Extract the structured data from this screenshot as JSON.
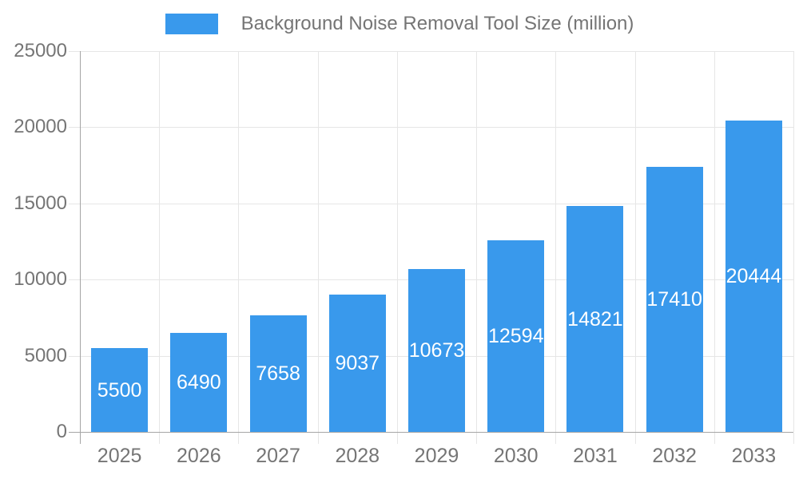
{
  "chart_data": {
    "type": "bar",
    "title": "Background Noise Removal Tool Size (million)",
    "legend": [
      "Background Noise Removal Tool Size (million)"
    ],
    "legend_position": "top-center",
    "categories": [
      "2025",
      "2026",
      "2027",
      "2028",
      "2029",
      "2030",
      "2031",
      "2032",
      "2033"
    ],
    "values": [
      5500,
      6490,
      7658,
      9037,
      10673,
      12594,
      14821,
      17410,
      20444
    ],
    "bar_value_labels": [
      "5500",
      "6490",
      "7658",
      "9037",
      "10673",
      "12594",
      "14821",
      "17410",
      "20444"
    ],
    "bar_label_position": "inside-center",
    "xlabel": "",
    "ylabel": "",
    "ylim": [
      0,
      25000
    ],
    "yticks": [
      0,
      5000,
      10000,
      15000,
      20000,
      25000
    ],
    "ytick_labels": [
      "0",
      "5000",
      "10000",
      "15000",
      "20000",
      "25000"
    ],
    "grid": true
  },
  "colors": {
    "bar": "#3999ec",
    "bar_label": "#ffffff",
    "axis_text": "#757575",
    "grid_line": "#e6e6e6",
    "axis_line": "#a5a5a5",
    "background": "#ffffff"
  }
}
